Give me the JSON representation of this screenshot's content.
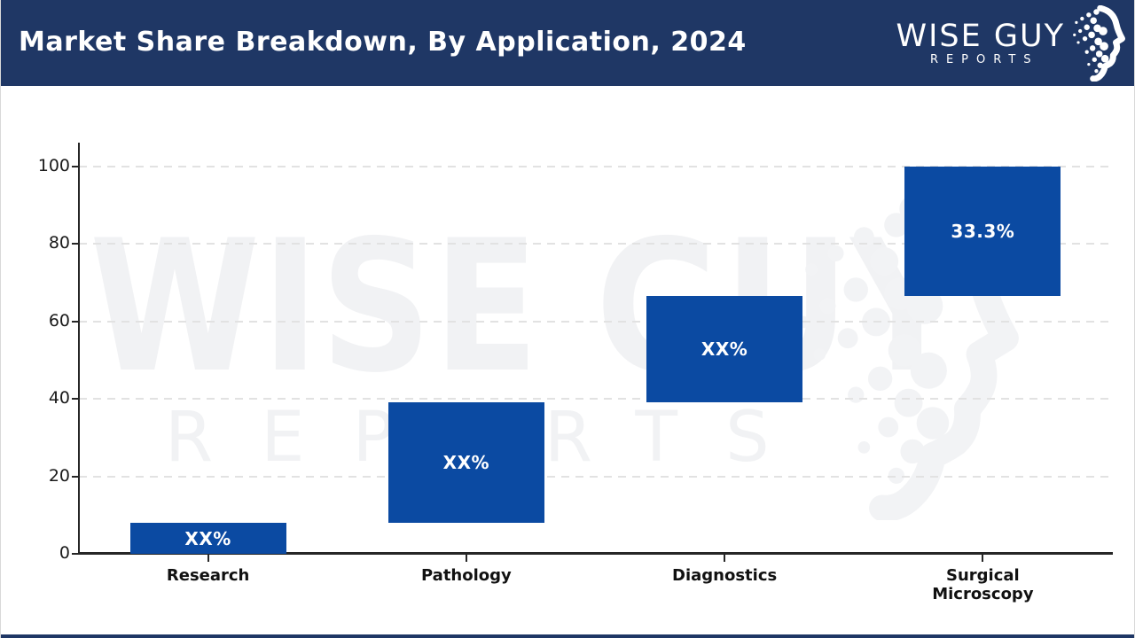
{
  "header": {
    "title": "Market Share Breakdown, By Application, 2024",
    "logo": {
      "line1": "WISE GUY",
      "line2": "REPORTS"
    }
  },
  "watermark": {
    "line1": "WISE GUY",
    "line2": "REPORTS"
  },
  "colors": {
    "header_bg": "#1f3765",
    "bar": "#0b4aa2",
    "axis": "#262626",
    "gridline": "#e2e2e2",
    "tick_label": "#1a1a1a",
    "bar_label": "#ffffff",
    "watermark": "#f1f2f4",
    "bottom_strip": "#1f3765"
  },
  "chart_data": {
    "type": "bar",
    "subtype": "waterfall-stacked-segments",
    "title": "Market Share Breakdown, By Application, 2024",
    "categories": [
      "Research",
      "Pathology",
      "Diagnostics",
      "Surgical Microscopy"
    ],
    "bars": [
      {
        "category": "Research",
        "base": 0,
        "top": 8,
        "label": "XX%"
      },
      {
        "category": "Pathology",
        "base": 8,
        "top": 39.1,
        "label": "XX%"
      },
      {
        "category": "Diagnostics",
        "base": 39.1,
        "top": 66.7,
        "label": "XX%"
      },
      {
        "category": "Surgical Microscopy",
        "base": 66.7,
        "top": 100,
        "label": "33.3%"
      }
    ],
    "yticks": [
      0,
      20,
      40,
      60,
      80,
      100
    ],
    "ylim": [
      0,
      100
    ],
    "xlabel": "",
    "ylabel": "",
    "grid": "horizontal-dashed",
    "legend": "none"
  }
}
